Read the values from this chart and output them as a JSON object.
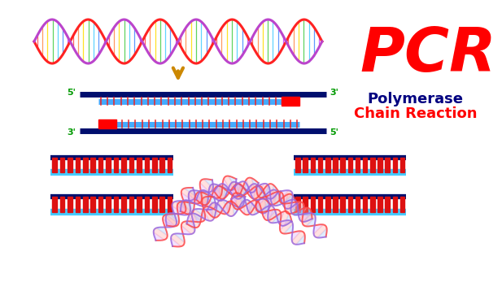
{
  "bg_color": "#ffffff",
  "title": "PCR",
  "title_color": "#ff0000",
  "subtitle1": "Polymerase",
  "subtitle2": "Chain Reaction",
  "subtitle1_color": "#000080",
  "subtitle2_color": "#ff0000",
  "helix_color1": "#ff2222",
  "helix_color2": "#bb44cc",
  "arrow_color": "#cc8800",
  "strand_dark": "#000f6e",
  "strand_light": "#44aaff",
  "primer_color": "#ff0000",
  "label_color": "#009900",
  "rung_red": "#dd1111",
  "rung_blue": "#0000cc",
  "ladder_top": "#000f6e",
  "ladder_bot": "#44ccff",
  "helix_pile_c1": "#ff4444",
  "helix_pile_c2": "#9966dd"
}
